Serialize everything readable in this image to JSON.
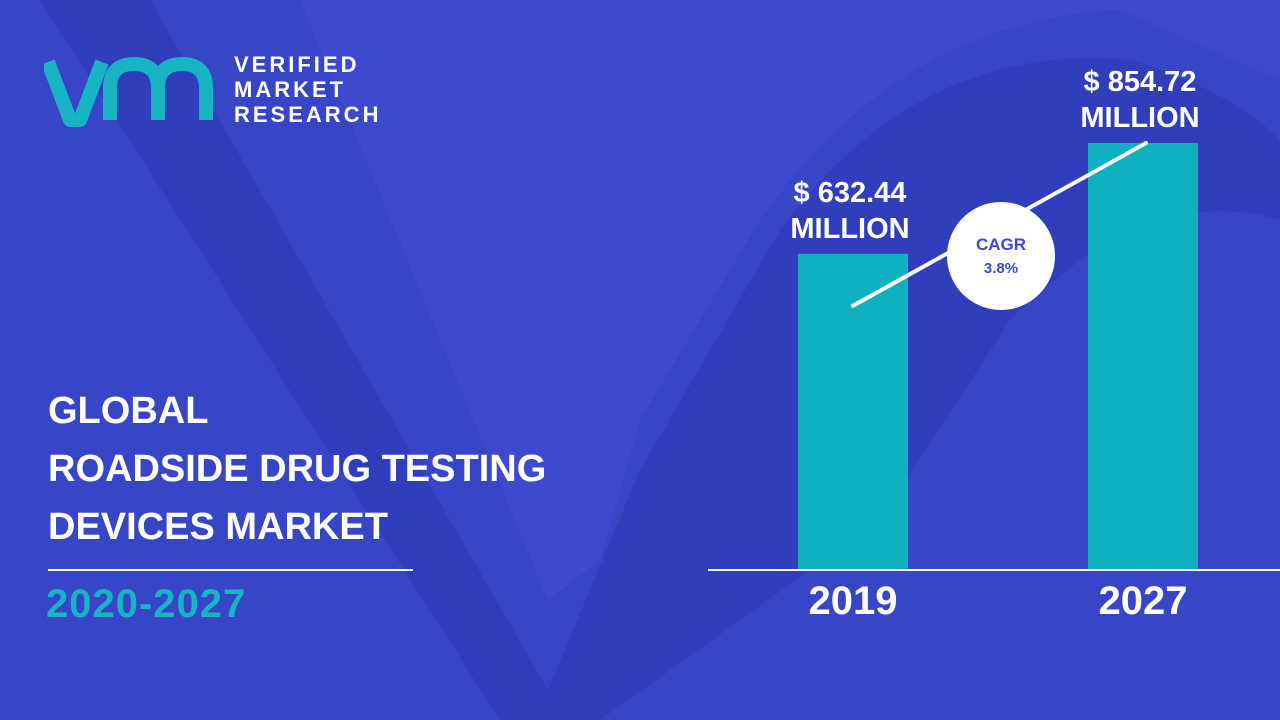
{
  "brand": {
    "line1": "VERIFIED",
    "line2": "MARKET",
    "line3": "RESEARCH",
    "mark_color": "#19b4c4"
  },
  "title": {
    "line1": "GLOBAL",
    "line2": "ROADSIDE DRUG TESTING",
    "line3": "DEVICES MARKET"
  },
  "period": "2020-2027",
  "colors": {
    "background": "#3d4ad0",
    "shape": "#2d3cb8",
    "bar": "#0fb0bf",
    "accent": "#19b4c4"
  },
  "chart_data": {
    "type": "bar",
    "categories": [
      "2019",
      "2027"
    ],
    "values": [
      632.44,
      854.72
    ],
    "value_labels": [
      [
        "$ 632.44",
        "MILLION"
      ],
      [
        "$ 854.72",
        "MILLION"
      ]
    ],
    "unit": "Million USD",
    "title": "",
    "xlabel": "",
    "ylabel": "",
    "ylim": [
      0,
      854.72
    ],
    "grid": false,
    "legend": "none",
    "annotation": {
      "label": "CAGR",
      "value": "3.8%"
    }
  }
}
